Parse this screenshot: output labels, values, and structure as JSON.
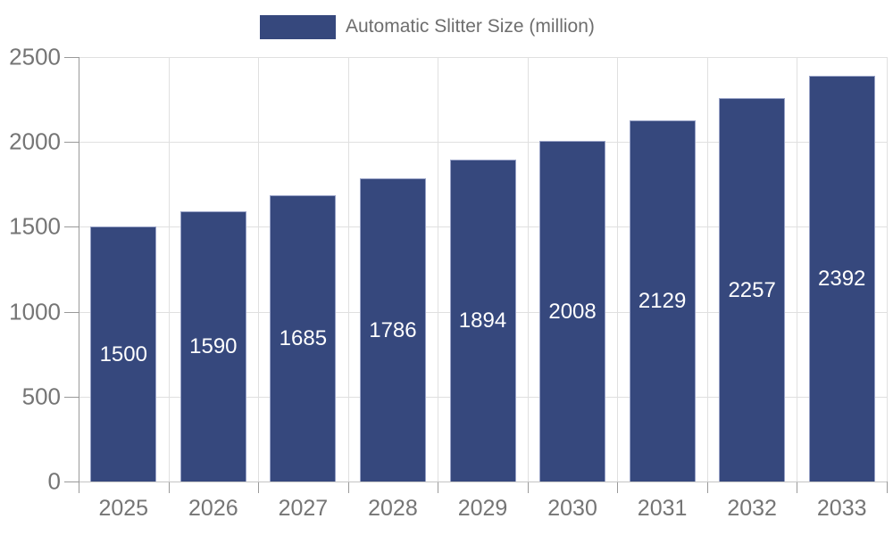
{
  "legend": {
    "label": "Automatic Slitter Size (million)"
  },
  "colors": {
    "bar_fill": "#36487d",
    "bar_border": "#97a1c6",
    "grid": "#e0e0e0",
    "axis_line": "#999999",
    "axis_text": "#757575",
    "value_label": "#ffffff"
  },
  "chart_data": {
    "type": "bar",
    "title": "Automatic Slitter Size (million)",
    "categories": [
      "2025",
      "2026",
      "2027",
      "2028",
      "2029",
      "2030",
      "2031",
      "2032",
      "2033"
    ],
    "values": [
      1500,
      1590,
      1685,
      1786,
      1894,
      2008,
      2129,
      2257,
      2392
    ],
    "xlabel": "",
    "ylabel": "",
    "ylim": [
      0,
      2500
    ],
    "yticks": [
      0,
      500,
      1000,
      1500,
      2000,
      2500
    ],
    "grid": true,
    "legend_position": "top",
    "value_labels": "centered-inside-bars"
  }
}
